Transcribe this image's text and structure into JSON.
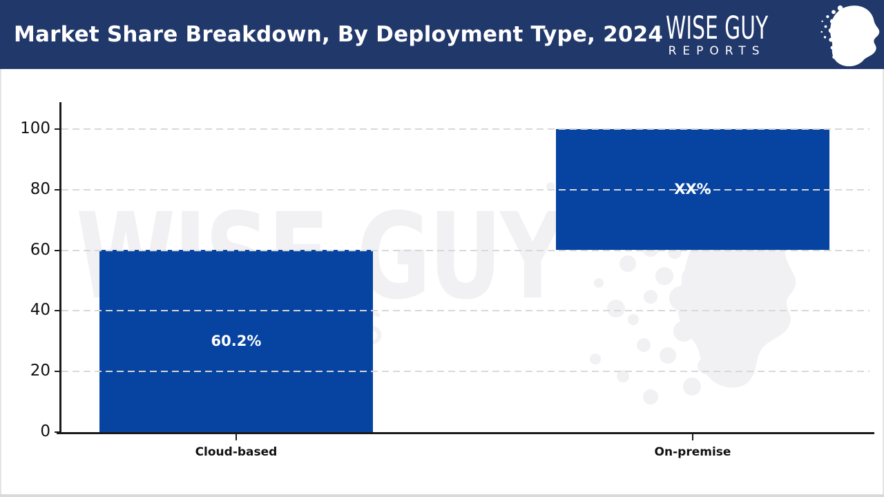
{
  "header": {
    "title": "Market Share Breakdown, By Deployment Type, 2024",
    "logo": {
      "name": "WISE GUY",
      "subtitle": "REPORTS"
    }
  },
  "watermark": {
    "big_text": "WISE GUY",
    "reports_text": "R T S"
  },
  "chart_data": {
    "type": "bar",
    "subtype": "waterfall-breakdown",
    "title": "Market Share Breakdown, By Deployment Type, 2024",
    "categories": [
      "Cloud-based",
      "On-premise"
    ],
    "bars": [
      {
        "category": "Cloud-based",
        "label": "60.2%",
        "value": 60.2,
        "start": 0,
        "end": 60.2
      },
      {
        "category": "On-premise",
        "label": "XX%",
        "value": "XX",
        "start": 60.2,
        "end": 100
      }
    ],
    "yticks": [
      0,
      20,
      40,
      60,
      80,
      100
    ],
    "ylim": [
      0,
      108
    ],
    "grid": {
      "show": true,
      "style": "dashed",
      "axis": "y"
    },
    "legend": "none",
    "colors": {
      "bar": "#0743a1",
      "bar_label": "#ffffff",
      "grid": "#d8d8d8",
      "axis": "#1a1a1a",
      "header_bg": "#21386b",
      "watermark": "#f1f1f4"
    }
  }
}
